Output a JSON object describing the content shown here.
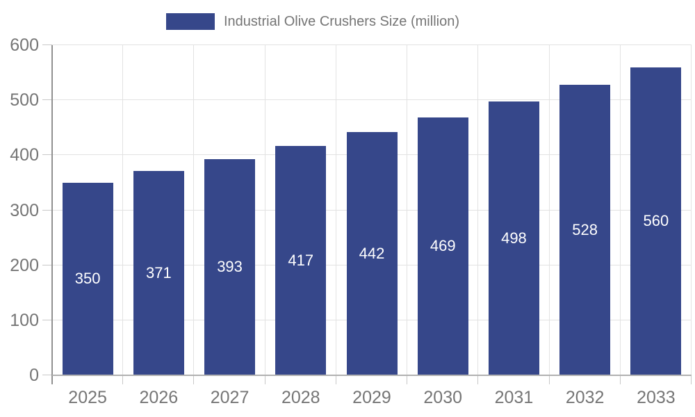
{
  "chart_data": {
    "type": "bar",
    "title": "Industrial Olive Crushers Size (million)",
    "series_name": "Industrial Olive Crushers Size (million)",
    "categories": [
      "2025",
      "2026",
      "2027",
      "2028",
      "2029",
      "2030",
      "2031",
      "2032",
      "2033"
    ],
    "values": [
      350,
      371,
      393,
      417,
      442,
      469,
      498,
      528,
      560
    ],
    "xlabel": "",
    "ylabel": "",
    "ylim": [
      0,
      600
    ],
    "yticks": [
      0,
      100,
      200,
      300,
      400,
      500,
      600
    ],
    "grid": true,
    "legend_position": "top",
    "bar_color": "#36478a",
    "bar_label_color": "#ffffff"
  },
  "colors": {
    "background": "#ffffff",
    "bar": "#36478a",
    "axis_text": "#757575",
    "legend_text": "#757575",
    "grid": "#e2e2e2",
    "axis_line": "#b0b0b0",
    "y_axis_line": "#909090",
    "tick": "#c8c8c8"
  }
}
